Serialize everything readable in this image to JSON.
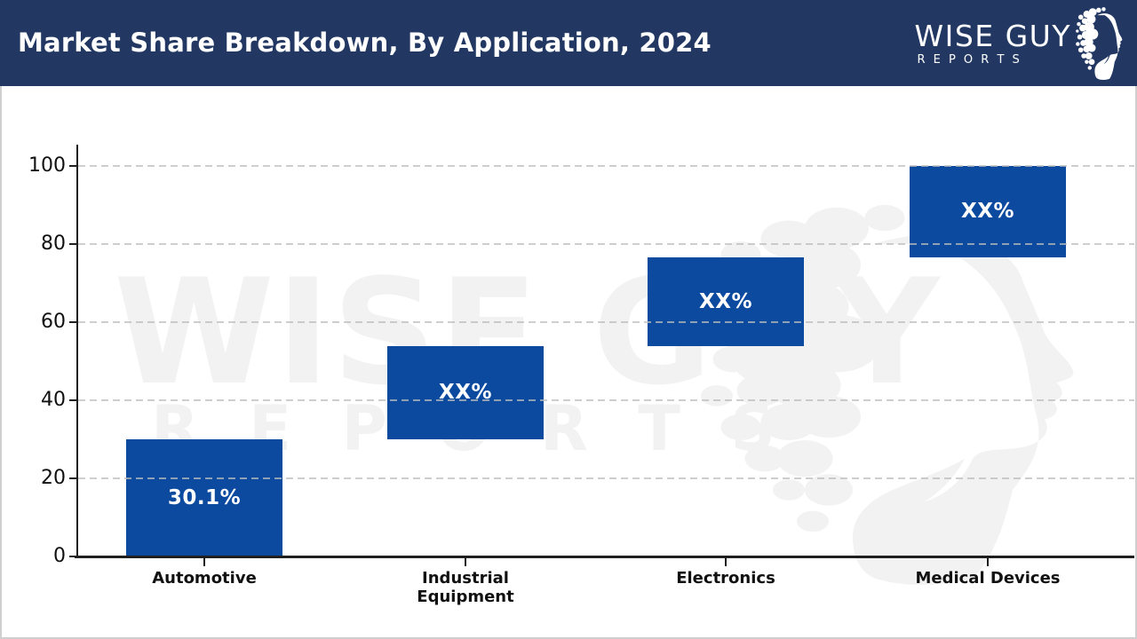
{
  "header": {
    "title": "Market Share Breakdown, By Application, 2024",
    "logo": {
      "name": "WISE GUY",
      "subtitle": "R E P O R T S"
    }
  },
  "watermark": {
    "name": "WISE GUY",
    "subtitle": "R E P O R T S"
  },
  "chart_data": {
    "type": "bar",
    "subtype": "floating-waterfall",
    "title": "Market Share Breakdown, By Application, 2024",
    "categories": [
      "Automotive",
      "Industrial\nEquipment",
      "Electronics",
      "Medical Devices"
    ],
    "bars": [
      {
        "category": "Automotive",
        "start": 0,
        "end": 30.1,
        "label": "30.1%"
      },
      {
        "category": "Industrial Equipment",
        "start": 30.1,
        "end": 53.8,
        "label": "XX%"
      },
      {
        "category": "Electronics",
        "start": 53.8,
        "end": 76.6,
        "label": "XX%"
      },
      {
        "category": "Medical Devices",
        "start": 76.6,
        "end": 100,
        "label": "XX%"
      }
    ],
    "xlabel": "",
    "ylabel": "",
    "yticks": [
      0,
      20,
      40,
      60,
      80,
      100
    ],
    "ylim": [
      0,
      105
    ],
    "grid": "horizontal-dashed",
    "legend": "none",
    "bar_color": "#0b4a9e"
  },
  "colors": {
    "header_bg": "#223863",
    "bar": "#0b4a9e",
    "axis": "#1f1f1f",
    "grid": "#bdbdbd",
    "watermark": "#f2f2f3",
    "page_border": "#cfcfcf"
  }
}
